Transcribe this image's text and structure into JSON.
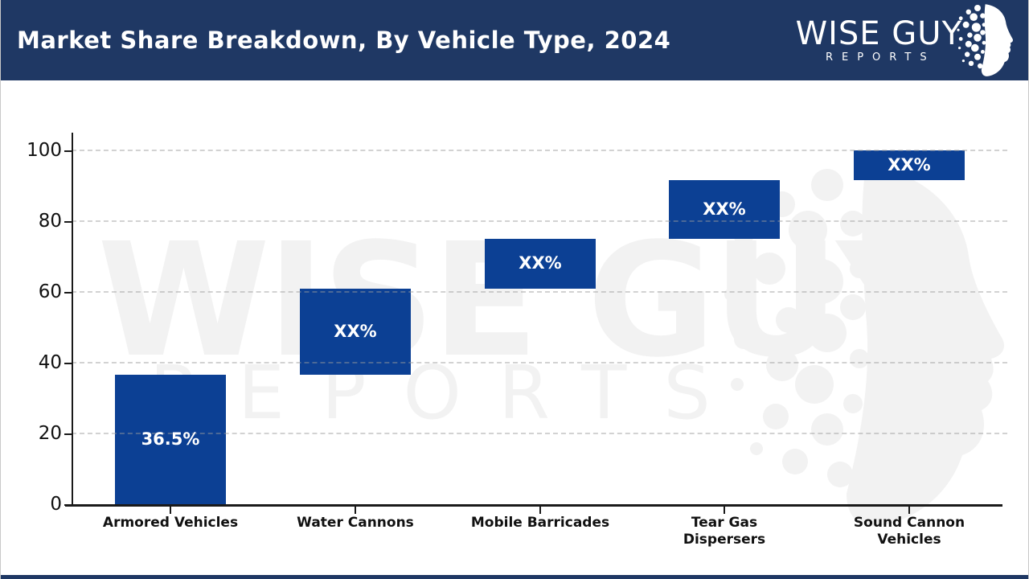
{
  "header": {
    "title": "Market Share Breakdown, By Vehicle Type, 2024",
    "logo": {
      "line1": "WISE GUY",
      "line2": "REPORTS"
    }
  },
  "watermark": {
    "line1": "WISE GUY",
    "line2": "REPORTS"
  },
  "colors": {
    "header_bg": "#1f3864",
    "bar": "#0c4094",
    "grid": "#d8d8d8",
    "axis": "#1a1a1a",
    "watermark": "#f2f2f2",
    "bar_label": "#ffffff"
  },
  "chart_data": {
    "type": "bar",
    "subtype": "waterfall",
    "title": "Market Share Breakdown, By Vehicle Type, 2024",
    "xlabel": "",
    "ylabel": "",
    "ylim": [
      0,
      105
    ],
    "yticks": [
      0,
      20,
      40,
      60,
      80,
      100
    ],
    "grid": "horizontal-dashed",
    "legend": "none",
    "categories": [
      "Armored Vehicles",
      "Water Cannons",
      "Mobile Barricades",
      "Tear Gas Dispersers",
      "Sound Cannon Vehicles"
    ],
    "segments": [
      {
        "category": "Armored Vehicles",
        "label_lines": [
          "Armored Vehicles"
        ],
        "start": 0,
        "end": 36.5,
        "value_label": "36.5%"
      },
      {
        "category": "Water Cannons",
        "label_lines": [
          "Water Cannons"
        ],
        "start": 36.5,
        "end": 61,
        "value_label": "XX%"
      },
      {
        "category": "Mobile Barricades",
        "label_lines": [
          "Mobile Barricades"
        ],
        "start": 61,
        "end": 75,
        "value_label": "XX%"
      },
      {
        "category": "Tear Gas Dispersers",
        "label_lines": [
          "Tear Gas",
          "Dispersers"
        ],
        "start": 75,
        "end": 91.5,
        "value_label": "XX%"
      },
      {
        "category": "Sound Cannon Vehicles",
        "label_lines": [
          "Sound Cannon",
          "Vehicles"
        ],
        "start": 91.5,
        "end": 100,
        "value_label": "XX%"
      }
    ]
  }
}
